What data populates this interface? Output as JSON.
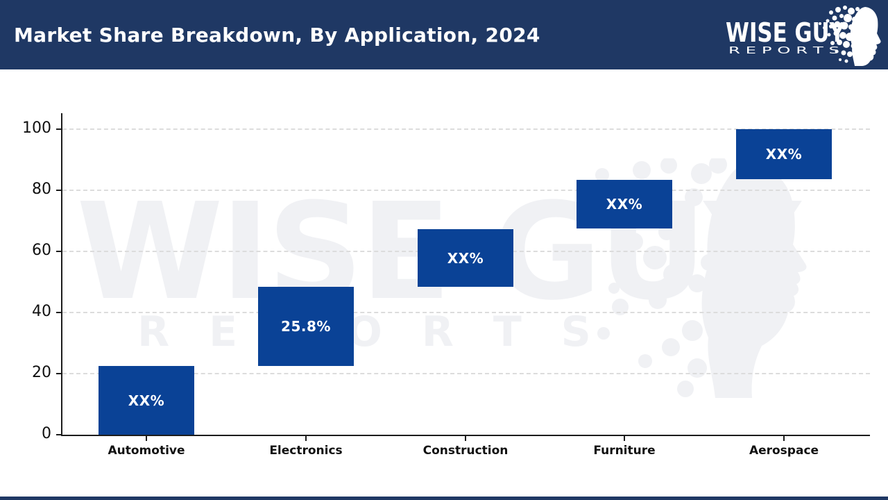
{
  "header": {
    "title": "Market Share Breakdown, By Application, 2024",
    "logo": {
      "primary": "WISE GUY",
      "secondary": "R E P O R T S"
    }
  },
  "watermark": {
    "primary": "WISE GUY",
    "secondary": "R E P O R T S"
  },
  "colors": {
    "header_bg": "#1f3864",
    "footer_bg": "#1f3864",
    "title_text": "#ffffff",
    "bar_fill": "#0a4296",
    "bar_label": "#ffffff",
    "gridline": "#dcdcdc",
    "axis": "#1c1c1c",
    "tick_label": "#111111",
    "watermark_text": "#f0f1f4"
  },
  "chart_data": {
    "type": "bar",
    "variant": "floating-segment-waterfall",
    "title": "Market Share Breakdown, By Application, 2024",
    "categories": [
      "Automotive",
      "Electronics",
      "Construction",
      "Furniture",
      "Aerospace"
    ],
    "bars": [
      {
        "category": "Automotive",
        "base": 0,
        "top": 22.5,
        "label": "XX%"
      },
      {
        "category": "Electronics",
        "base": 22.5,
        "top": 48.3,
        "label": "25.8%"
      },
      {
        "category": "Construction",
        "base": 48.3,
        "top": 67.3,
        "label": "XX%"
      },
      {
        "category": "Furniture",
        "base": 67.4,
        "top": 83.5,
        "label": "XX%"
      },
      {
        "category": "Aerospace",
        "base": 83.6,
        "top": 100,
        "label": "XX%"
      }
    ],
    "xlabel": "",
    "ylabel": "",
    "yticks": [
      0,
      20,
      40,
      60,
      80,
      100
    ],
    "ylim": [
      0,
      105
    ],
    "grid": "horizontal-dashed",
    "legend": "none"
  }
}
